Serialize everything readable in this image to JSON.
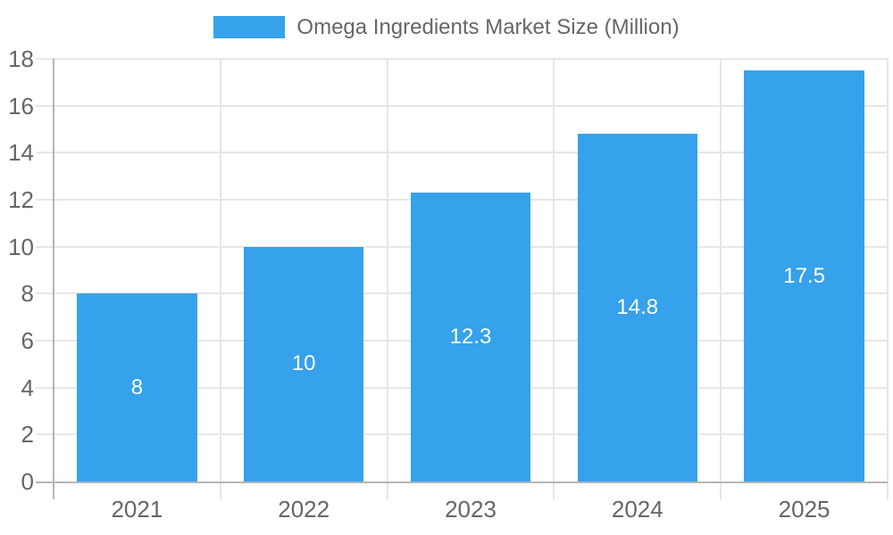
{
  "legend": {
    "label": "Omega Ingredients Market Size (Million)"
  },
  "chart_data": {
    "type": "bar",
    "title": "Omega Ingredients Market Size (Million)",
    "categories": [
      "2021",
      "2022",
      "2023",
      "2024",
      "2025"
    ],
    "series": [
      {
        "name": "Omega Ingredients Market Size (Million)",
        "values": [
          8,
          10,
          12.3,
          14.8,
          17.5
        ]
      }
    ],
    "data_labels": [
      "8",
      "10",
      "12.3",
      "14.8",
      "17.5"
    ],
    "xlabel": "",
    "ylabel": "",
    "ylim": [
      0,
      18
    ],
    "yticks": [
      0,
      2,
      4,
      6,
      8,
      10,
      12,
      14,
      16,
      18
    ],
    "grid": true,
    "legend_position": "top-center",
    "colors": {
      "bar": "#36A2EB",
      "gridline": "#E6E6E6",
      "axis_line": "#B5B5B5",
      "tick_text": "#666666",
      "value_label_text": "#FFFFFF",
      "background": "#FFFFFF"
    }
  }
}
